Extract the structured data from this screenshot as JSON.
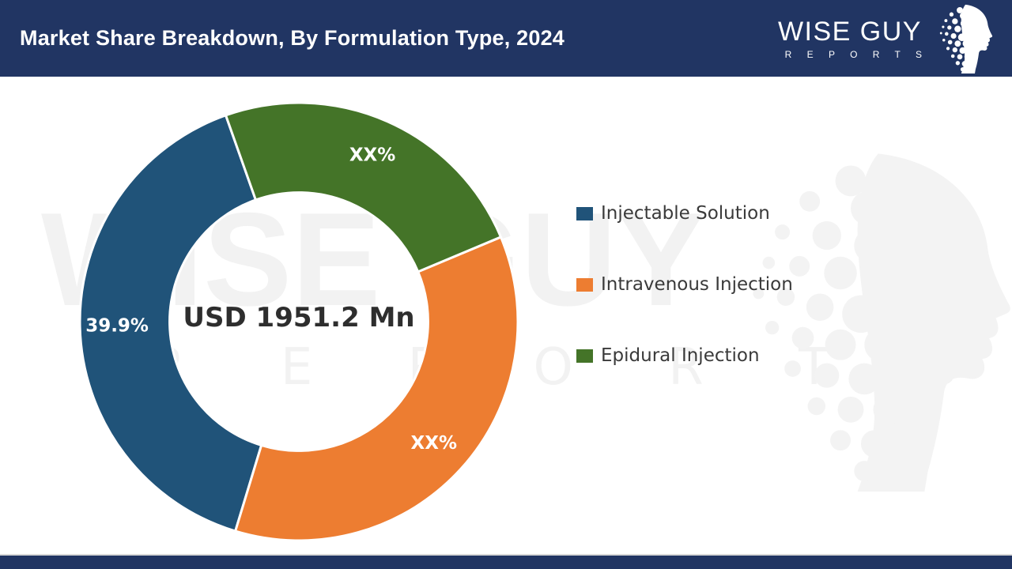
{
  "header": {
    "title": "Market Share Breakdown, By Formulation Type, 2024",
    "logo": {
      "line1": "WISE GUY",
      "line2": "R E P O R T S"
    }
  },
  "watermark": {
    "line1": "WISE GUY",
    "line2": "R E P O R T S"
  },
  "chart_data": {
    "type": "pie",
    "subtype": "donut",
    "title": "Market Share Breakdown, By Formulation Type, 2024",
    "center_label": "USD 1951.2 Mn",
    "start_angle_deg": 109.5,
    "direction": "counterclockwise",
    "inner_radius_ratio": 0.59,
    "legend_position": "right",
    "slices": [
      {
        "label": "Injectable Solution",
        "value_pct": 39.9,
        "display_label": "39.9%",
        "color": "#205379"
      },
      {
        "label": "Intravenous Injection",
        "value_pct": 36.0,
        "display_label": "XX%",
        "color": "#ed7d31"
      },
      {
        "label": "Epidural Injection",
        "value_pct": 24.1,
        "display_label": "XX%",
        "color": "#447428"
      }
    ]
  },
  "colors": {
    "header_bg": "#213563",
    "footer_bg": "#213563",
    "footer_separator": "#d9d9d9",
    "watermark": "#f2f2f2",
    "legend_text": "#3a3a3a",
    "center_text": "#2e2e2e",
    "slice_gap": "#ffffff"
  }
}
